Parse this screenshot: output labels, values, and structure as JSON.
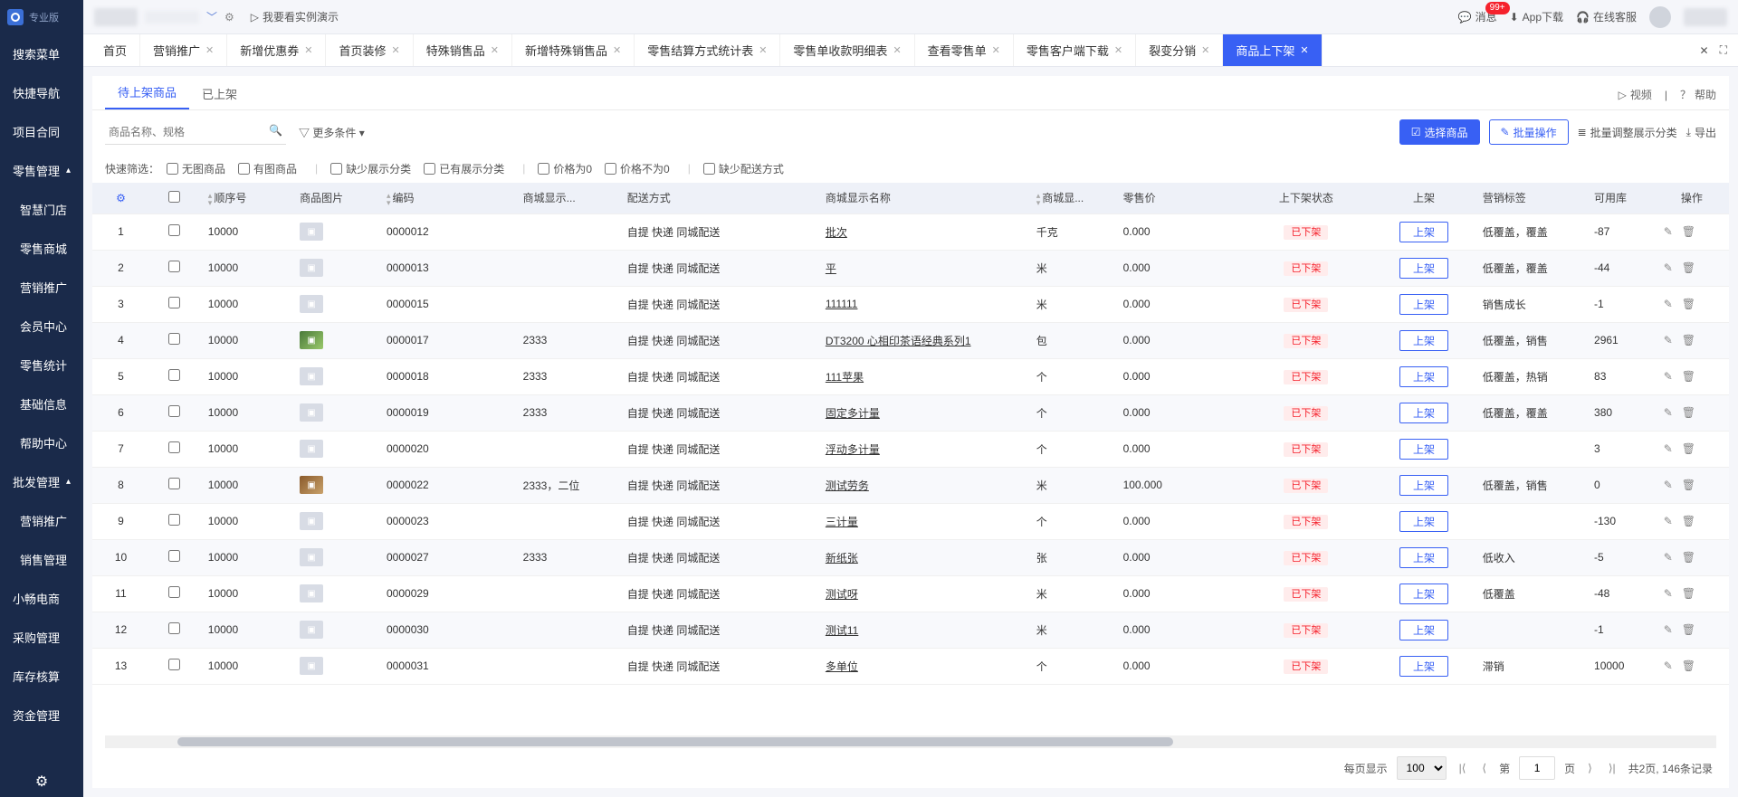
{
  "logo_text": "专业版",
  "sidebar": {
    "items": [
      {
        "label": "搜索菜单",
        "sub": false
      },
      {
        "label": "快捷导航",
        "sub": false
      },
      {
        "label": "项目合同",
        "sub": false
      },
      {
        "label": "零售管理",
        "expand": true
      },
      {
        "label": "智慧门店",
        "sub": true
      },
      {
        "label": "零售商城",
        "sub": true
      },
      {
        "label": "营销推广",
        "sub": true
      },
      {
        "label": "会员中心",
        "sub": true
      },
      {
        "label": "零售统计",
        "sub": true
      },
      {
        "label": "基础信息",
        "sub": true
      },
      {
        "label": "帮助中心",
        "sub": true
      },
      {
        "label": "批发管理",
        "expand": true
      },
      {
        "label": "营销推广",
        "sub": true
      },
      {
        "label": "销售管理",
        "sub": true
      },
      {
        "label": "小畅电商",
        "sub": false
      },
      {
        "label": "采购管理",
        "sub": false
      },
      {
        "label": "库存核算",
        "sub": false
      },
      {
        "label": "资金管理",
        "sub": false
      }
    ]
  },
  "topbar": {
    "demo": "我要看实例演示",
    "msg": "消息",
    "msg_badge": "99+",
    "appdl": "App下载",
    "service": "在线客服"
  },
  "tabs": [
    {
      "label": "首页",
      "close": false
    },
    {
      "label": "营销推广",
      "close": true
    },
    {
      "label": "新增优惠券",
      "close": true
    },
    {
      "label": "首页装修",
      "close": true
    },
    {
      "label": "特殊销售品",
      "close": true
    },
    {
      "label": "新增特殊销售品",
      "close": true
    },
    {
      "label": "零售结算方式统计表",
      "close": true
    },
    {
      "label": "零售单收款明细表",
      "close": true
    },
    {
      "label": "查看零售单",
      "close": true
    },
    {
      "label": "零售客户端下载",
      "close": true
    },
    {
      "label": "裂变分销",
      "close": true
    },
    {
      "label": "商品上下架",
      "close": true,
      "active": true
    }
  ],
  "subtabs": {
    "pending": "待上架商品",
    "done": "已上架"
  },
  "subtab_right": {
    "video": "视频",
    "help": "帮助"
  },
  "search_placeholder": "商品名称、规格",
  "more_cond": "更多条件",
  "toolbar": {
    "select": "选择商品",
    "batch": "批量操作",
    "adjust": "批量调整展示分类",
    "export": "导出"
  },
  "filters": {
    "label": "快速筛选：",
    "f1": "无图商品",
    "f2": "有图商品",
    "f3": "缺少展示分类",
    "f4": "已有展示分类",
    "f5": "价格为0",
    "f6": "价格不为0",
    "f7": "缺少配送方式"
  },
  "columns": {
    "idx": "",
    "chk": "",
    "seq": "顺序号",
    "img": "商品图片",
    "code": "编码",
    "disp": "商城显示...",
    "ship": "配送方式",
    "name": "商城显示名称",
    "unit": "商城显...",
    "price": "零售价",
    "status": "上下架状态",
    "up": "上架",
    "tags": "营销标签",
    "stock": "可用库",
    "op": "操作"
  },
  "status_off": "已下架",
  "btn_up": "上架",
  "ship_text": "自提 快递 同城配送",
  "rows": [
    {
      "i": 1,
      "seq": "10000",
      "code": "0000012",
      "disp": "",
      "name": "批次",
      "unit": "千克",
      "price": "0.000",
      "tags": "低覆盖，覆盖",
      "stock": "-87",
      "img": ""
    },
    {
      "i": 2,
      "seq": "10000",
      "code": "0000013",
      "disp": "",
      "name": "平",
      "unit": "米",
      "price": "0.000",
      "tags": "低覆盖，覆盖",
      "stock": "-44",
      "img": ""
    },
    {
      "i": 3,
      "seq": "10000",
      "code": "0000015",
      "disp": "",
      "name": "111111",
      "unit": "米",
      "price": "0.000",
      "tags": "销售成长",
      "stock": "-1",
      "img": ""
    },
    {
      "i": 4,
      "seq": "10000",
      "code": "0000017",
      "disp": "2333",
      "name": "DT3200 心相印茶语经典系列1",
      "unit": "包",
      "price": "0.000",
      "tags": "低覆盖，销售",
      "stock": "2961",
      "img": "real2"
    },
    {
      "i": 5,
      "seq": "10000",
      "code": "0000018",
      "disp": "2333",
      "name": "111苹果",
      "unit": "个",
      "price": "0.000",
      "tags": "低覆盖，热销",
      "stock": "83",
      "img": ""
    },
    {
      "i": 6,
      "seq": "10000",
      "code": "0000019",
      "disp": "2333",
      "name": "固定多计量",
      "unit": "个",
      "price": "0.000",
      "tags": "低覆盖，覆盖",
      "stock": "380",
      "img": ""
    },
    {
      "i": 7,
      "seq": "10000",
      "code": "0000020",
      "disp": "",
      "name": "浮动多计量",
      "unit": "个",
      "price": "0.000",
      "tags": "",
      "stock": "3",
      "img": ""
    },
    {
      "i": 8,
      "seq": "10000",
      "code": "0000022",
      "disp": "2333，二位",
      "name": "测试劳务",
      "unit": "米",
      "price": "100.000",
      "tags": "低覆盖，销售",
      "stock": "0",
      "img": "real"
    },
    {
      "i": 9,
      "seq": "10000",
      "code": "0000023",
      "disp": "",
      "name": "三计量",
      "unit": "个",
      "price": "0.000",
      "tags": "",
      "stock": "-130",
      "img": ""
    },
    {
      "i": 10,
      "seq": "10000",
      "code": "0000027",
      "disp": "2333",
      "name": "新纸张",
      "unit": "张",
      "price": "0.000",
      "tags": "低收入",
      "stock": "-5",
      "img": ""
    },
    {
      "i": 11,
      "seq": "10000",
      "code": "0000029",
      "disp": "",
      "name": "测试呀",
      "unit": "米",
      "price": "0.000",
      "tags": "低覆盖",
      "stock": "-48",
      "img": ""
    },
    {
      "i": 12,
      "seq": "10000",
      "code": "0000030",
      "disp": "",
      "name": "测试11",
      "unit": "米",
      "price": "0.000",
      "tags": "",
      "stock": "-1",
      "img": ""
    },
    {
      "i": 13,
      "seq": "10000",
      "code": "0000031",
      "disp": "",
      "name": "多单位",
      "unit": "个",
      "price": "0.000",
      "tags": "滞销",
      "stock": "10000",
      "img": ""
    }
  ],
  "pager": {
    "per_label": "每页显示",
    "per": "100",
    "page_label_a": "第",
    "page": "1",
    "page_label_b": "页",
    "summary": "共2页, 146条记录"
  }
}
